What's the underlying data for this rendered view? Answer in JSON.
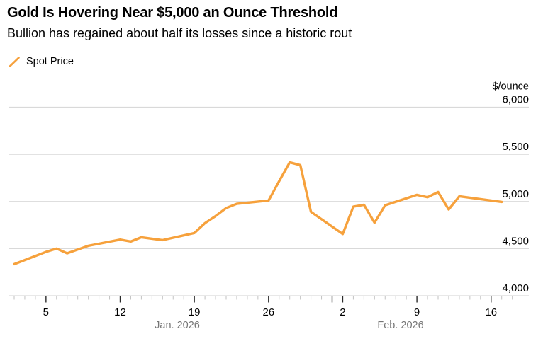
{
  "header": {
    "title": "Gold Is Hovering Near $5,000 an Ounce Threshold",
    "subtitle": "Bullion has regained about half its losses since a historic rout"
  },
  "legend": {
    "items": [
      {
        "label": "Spot Price",
        "marker": "slash-icon",
        "color": "#F6A13C"
      }
    ]
  },
  "colors": {
    "accent": "#F6A13C",
    "gridline": "#D9D9D9",
    "tick_minor": "#C2C2C2",
    "tick_major": "#2B2B2B",
    "month_label": "#767676",
    "separator": "#8A8A8A",
    "text": "#000000",
    "background": "#FFFFFF"
  },
  "chart_data": {
    "type": "line",
    "title": "Gold Is Hovering Near $5,000 an Ounce Threshold",
    "subtitle": "Bullion has regained about half its losses since a historic rout",
    "unit_label": "$/ounce",
    "grid": true,
    "legend_position": "top-left",
    "y_axis": {
      "min": 4000,
      "max": 6000,
      "side": "right",
      "ticks": [
        {
          "value": 4000,
          "label": "4,000"
        },
        {
          "value": 4500,
          "label": "4,500"
        },
        {
          "value": 5000,
          "label": "5,000"
        },
        {
          "value": 5500,
          "label": "5,500"
        },
        {
          "value": 6000,
          "label": "6,000"
        }
      ]
    },
    "x_axis": {
      "start": "2026-01-02",
      "end": "2026-02-18",
      "minor_tick_interval": "day",
      "labeled_ticks": [
        {
          "date": "2026-01-05",
          "label": "5"
        },
        {
          "date": "2026-01-12",
          "label": "12"
        },
        {
          "date": "2026-01-19",
          "label": "19"
        },
        {
          "date": "2026-01-26",
          "label": "26"
        },
        {
          "date": "2026-02-02",
          "label": "2"
        },
        {
          "date": "2026-02-09",
          "label": "9"
        },
        {
          "date": "2026-02-16",
          "label": "16"
        }
      ],
      "month_start_tick": "2026-02-01",
      "month_labels": [
        "Jan. 2026",
        "Feb. 2026"
      ]
    },
    "series": [
      {
        "name": "Spot Price",
        "color": "#F6A13C",
        "points": [
          {
            "date": "2026-01-02",
            "value": 4335
          },
          {
            "date": "2026-01-05",
            "value": 4465
          },
          {
            "date": "2026-01-06",
            "value": 4500
          },
          {
            "date": "2026-01-07",
            "value": 4450
          },
          {
            "date": "2026-01-08",
            "value": 4490
          },
          {
            "date": "2026-01-09",
            "value": 4530
          },
          {
            "date": "2026-01-12",
            "value": 4595
          },
          {
            "date": "2026-01-13",
            "value": 4575
          },
          {
            "date": "2026-01-14",
            "value": 4620
          },
          {
            "date": "2026-01-15",
            "value": 4605
          },
          {
            "date": "2026-01-16",
            "value": 4590
          },
          {
            "date": "2026-01-19",
            "value": 4665
          },
          {
            "date": "2026-01-20",
            "value": 4770
          },
          {
            "date": "2026-01-21",
            "value": 4845
          },
          {
            "date": "2026-01-22",
            "value": 4930
          },
          {
            "date": "2026-01-23",
            "value": 4975
          },
          {
            "date": "2026-01-26",
            "value": 5010
          },
          {
            "date": "2026-01-27",
            "value": 5215
          },
          {
            "date": "2026-01-28",
            "value": 5415
          },
          {
            "date": "2026-01-29",
            "value": 5385
          },
          {
            "date": "2026-01-30",
            "value": 4890
          },
          {
            "date": "2026-02-02",
            "value": 4655
          },
          {
            "date": "2026-02-03",
            "value": 4945
          },
          {
            "date": "2026-02-04",
            "value": 4965
          },
          {
            "date": "2026-02-05",
            "value": 4775
          },
          {
            "date": "2026-02-06",
            "value": 4960
          },
          {
            "date": "2026-02-09",
            "value": 5070
          },
          {
            "date": "2026-02-10",
            "value": 5045
          },
          {
            "date": "2026-02-11",
            "value": 5100
          },
          {
            "date": "2026-02-12",
            "value": 4915
          },
          {
            "date": "2026-02-13",
            "value": 5055
          },
          {
            "date": "2026-02-16",
            "value": 5010
          },
          {
            "date": "2026-02-17",
            "value": 4995
          }
        ]
      }
    ]
  }
}
